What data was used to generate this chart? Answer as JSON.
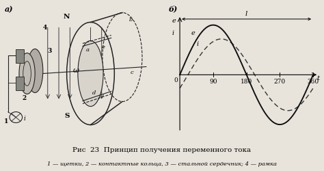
{
  "title": "Рис  23  Принцип получения переменного тока",
  "subtitle": "1 — щетки, 2 — контактные кольца, 3 — стальной сердечник; 4 — рамка",
  "graph_label_a": "а)",
  "graph_label_b": "б)",
  "x_label": "t",
  "period_label": "l",
  "x_ticks": [
    0,
    90,
    180,
    270,
    360
  ],
  "curve_e_label": "e",
  "curve_i_label": "i",
  "bg_color": "#e8e4dc",
  "line_color_solid": "#111111",
  "line_color_dashed": "#333333",
  "amplitude_e": 1.0,
  "amplitude_i": 0.72,
  "phase_i_deg": 22
}
